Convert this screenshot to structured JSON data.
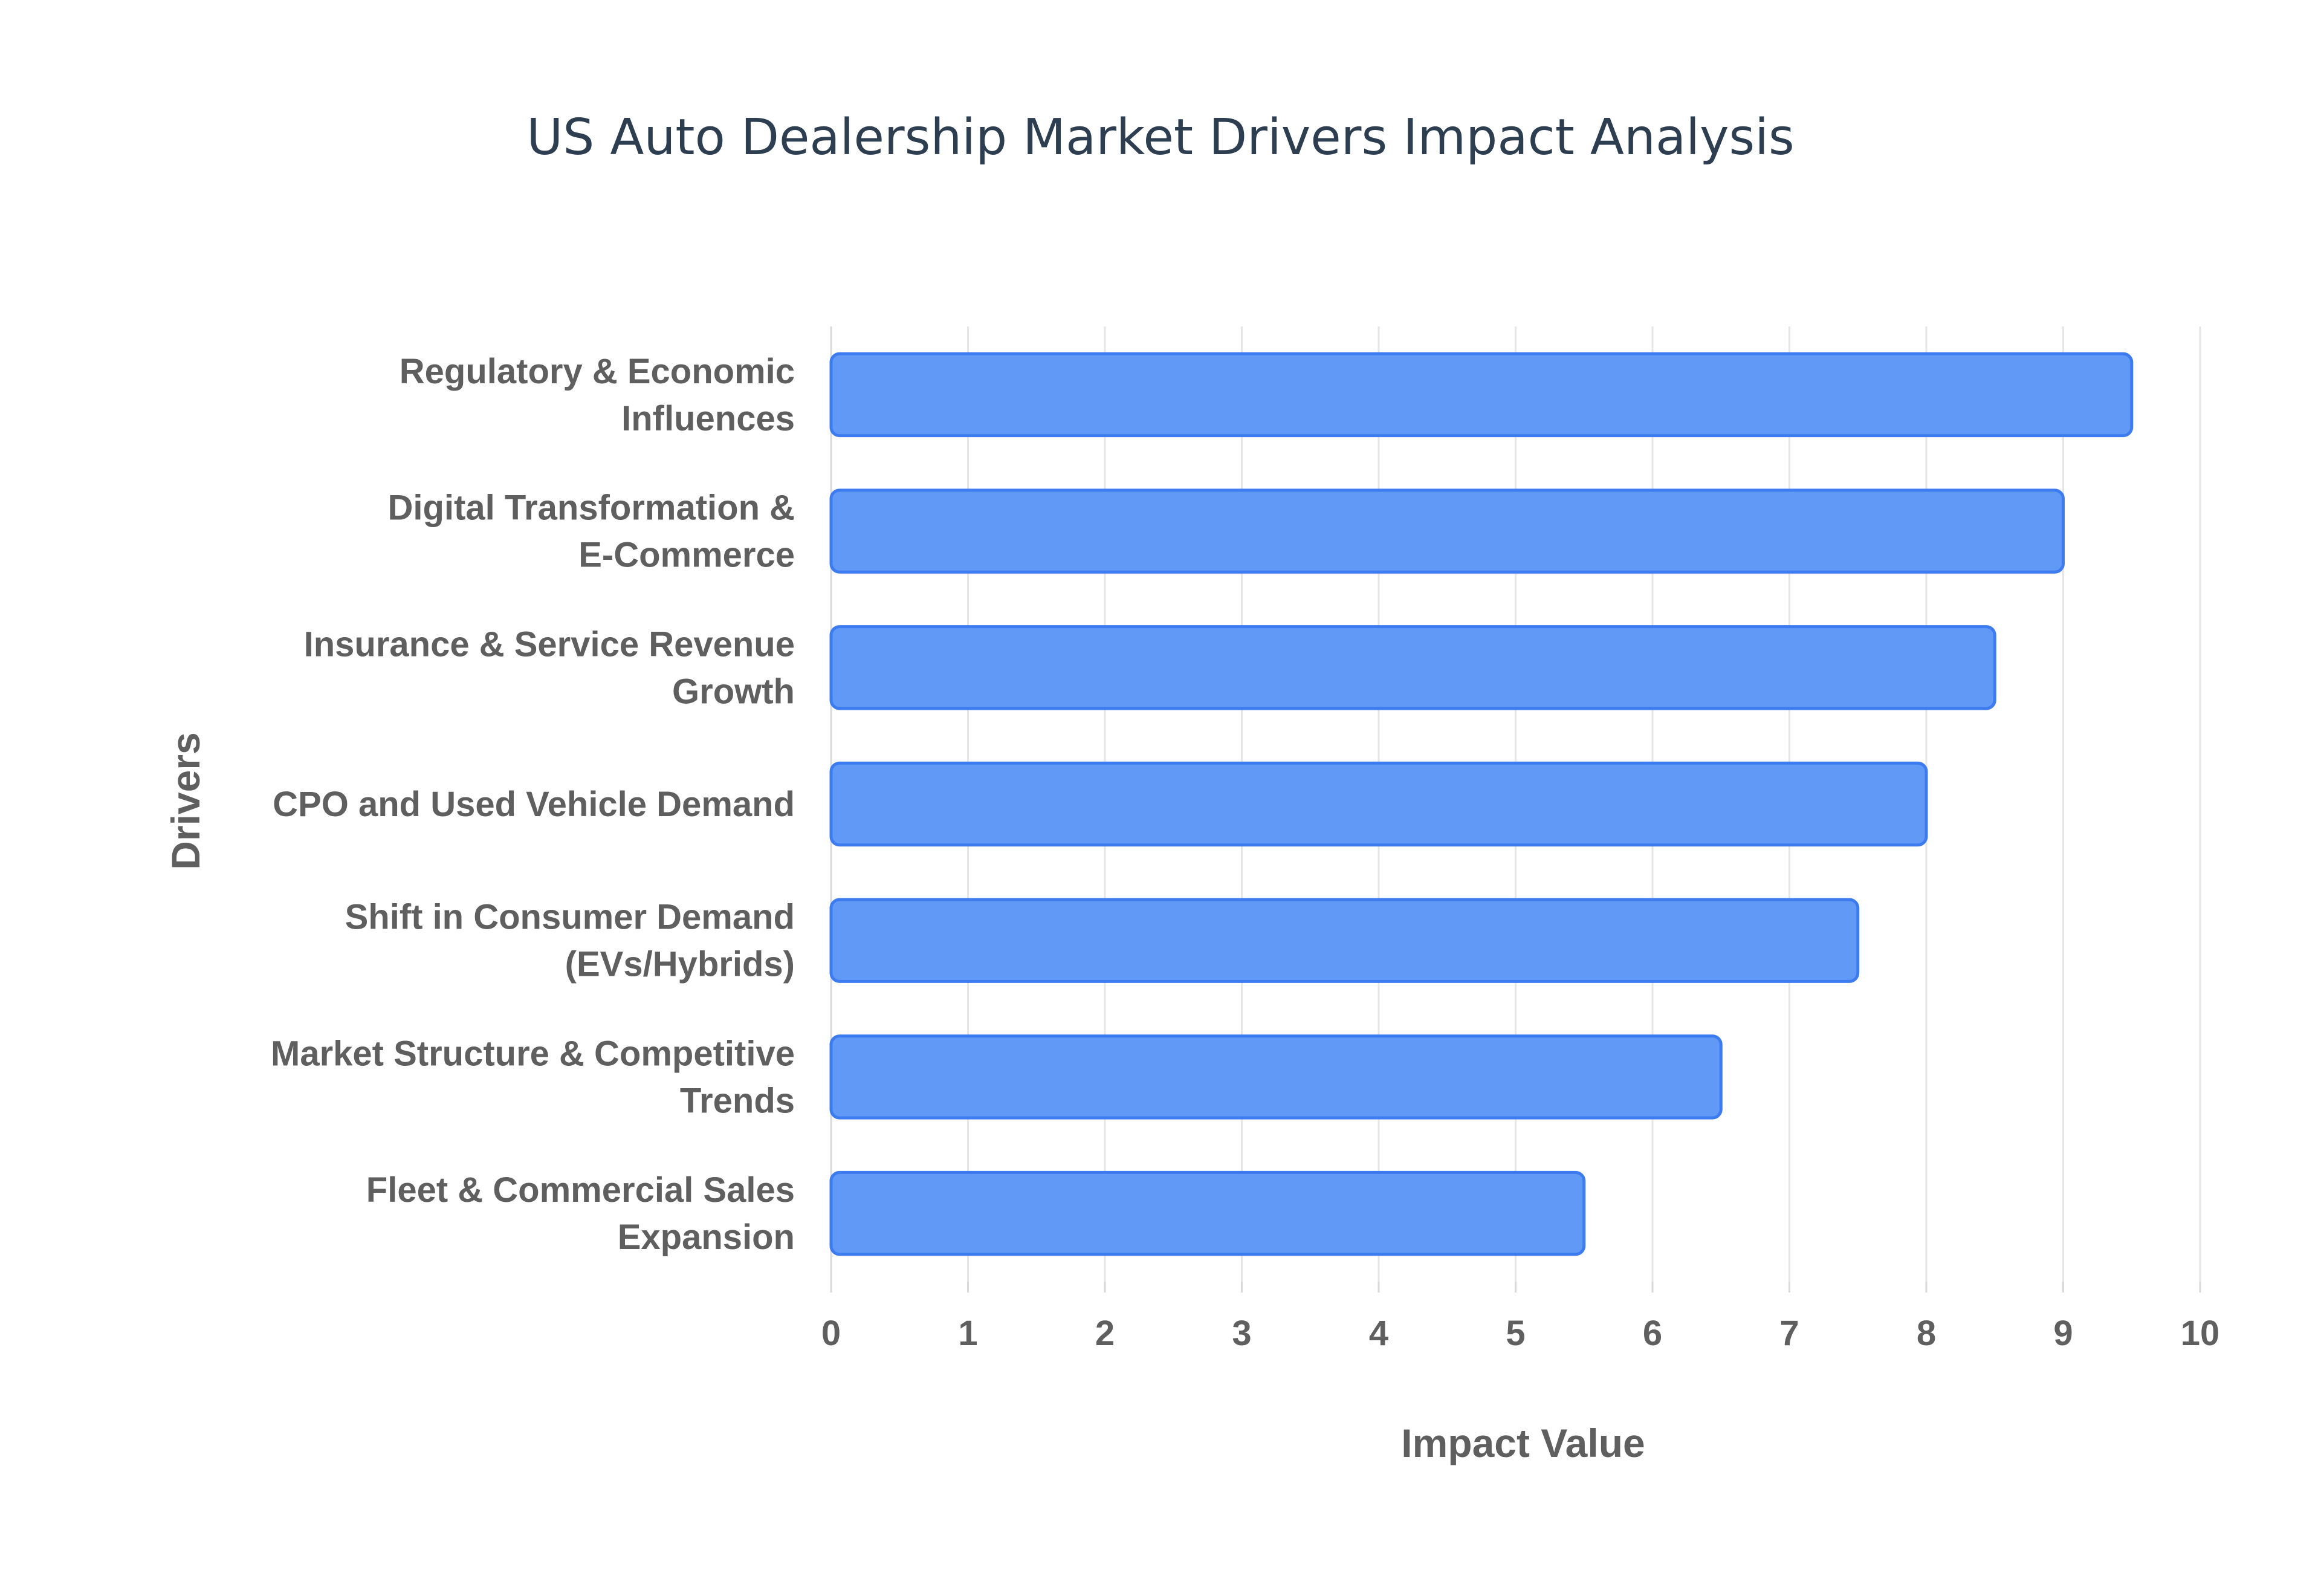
{
  "chart_data": {
    "type": "bar",
    "orientation": "horizontal",
    "title": "US Auto Dealership Market Drivers Impact Analysis",
    "xlabel": "Impact Value",
    "ylabel": "Drivers",
    "xlim": [
      0,
      10
    ],
    "xticks": [
      "0",
      "1",
      "2",
      "3",
      "4",
      "5",
      "6",
      "7",
      "8",
      "9",
      "10"
    ],
    "grid": true,
    "categories": [
      [
        "Regulatory & Economic",
        "Influences"
      ],
      [
        "Digital Transformation &",
        "E-Commerce"
      ],
      [
        "Insurance & Service Revenue",
        "Growth"
      ],
      [
        "CPO and Used Vehicle Demand"
      ],
      [
        "Shift in Consumer Demand",
        "(EVs/Hybrids)"
      ],
      [
        "Market Structure & Competitive",
        "Trends"
      ],
      [
        "Fleet & Commercial Sales",
        "Expansion"
      ]
    ],
    "values": [
      9.5,
      9.0,
      8.5,
      8.0,
      7.5,
      6.5,
      5.5
    ],
    "colors": {
      "bar_fill": "#6199f6",
      "bar_stroke": "#3d7cf0"
    }
  }
}
